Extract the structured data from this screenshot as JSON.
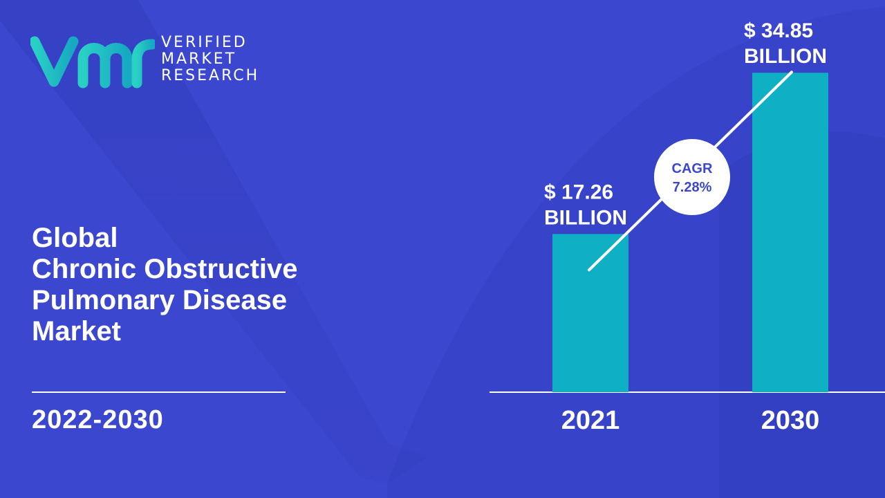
{
  "brand": {
    "logo_lines": [
      "VERIFIED",
      "MARKET",
      "RESEARCH"
    ],
    "logo_mark": "vmr",
    "colors": {
      "logo_gradient_start": "#2ad0c4",
      "logo_gradient_end": "#17a8c2"
    }
  },
  "title_lines": [
    "Global",
    "Chronic Obstructive",
    "Pulmonary Disease",
    "Market"
  ],
  "period": "2022-2030",
  "colors": {
    "background": "#3b47cf",
    "bar": "#0fb0c4",
    "text": "#ffffff",
    "cagr_text": "#3b47cf"
  },
  "chart_data": {
    "type": "bar",
    "categories": [
      "2021",
      "2030"
    ],
    "values": [
      17.26,
      34.85
    ],
    "value_labels": [
      [
        "$ 17.26",
        "BILLION"
      ],
      [
        "$ 34.85",
        "BILLION"
      ]
    ],
    "unit": "USD billion",
    "ylim": [
      0,
      40
    ],
    "grid": false,
    "legend": "none",
    "annotation": {
      "label": "CAGR",
      "value": "7.28%"
    }
  }
}
